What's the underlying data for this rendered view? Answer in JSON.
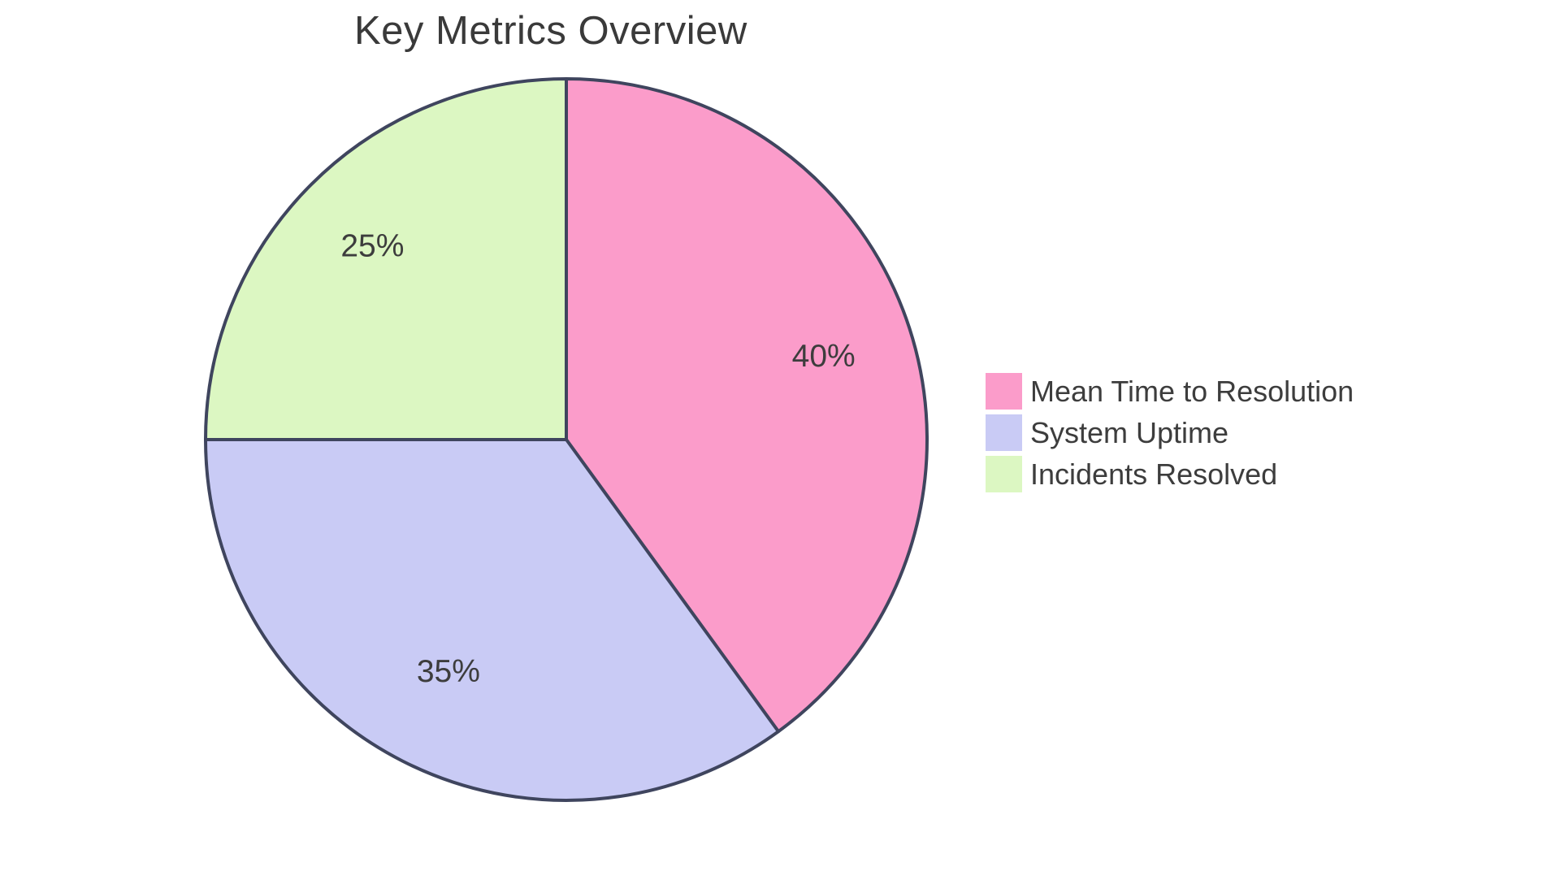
{
  "chart_data": {
    "type": "pie",
    "title": "Key Metrics Overview",
    "unit": "%",
    "slices": [
      {
        "label": "Mean Time to Resolution",
        "value": 40,
        "display": "40%",
        "color": "#FB9CCA"
      },
      {
        "label": "System Uptime",
        "value": 35,
        "display": "35%",
        "color": "#C9CBF5"
      },
      {
        "label": "Incidents Resolved",
        "value": 25,
        "display": "25%",
        "color": "#DCF7C2"
      }
    ],
    "start_angle_deg_from_top": 0,
    "direction": "clockwise",
    "stroke_color": "#3F455E",
    "slice_label_color": "#3D3D3D",
    "title_color": "#3A3A3A",
    "legend_text_color": "#3D3D3D",
    "legend_position": "right",
    "background_color": "#FFFFFF"
  }
}
